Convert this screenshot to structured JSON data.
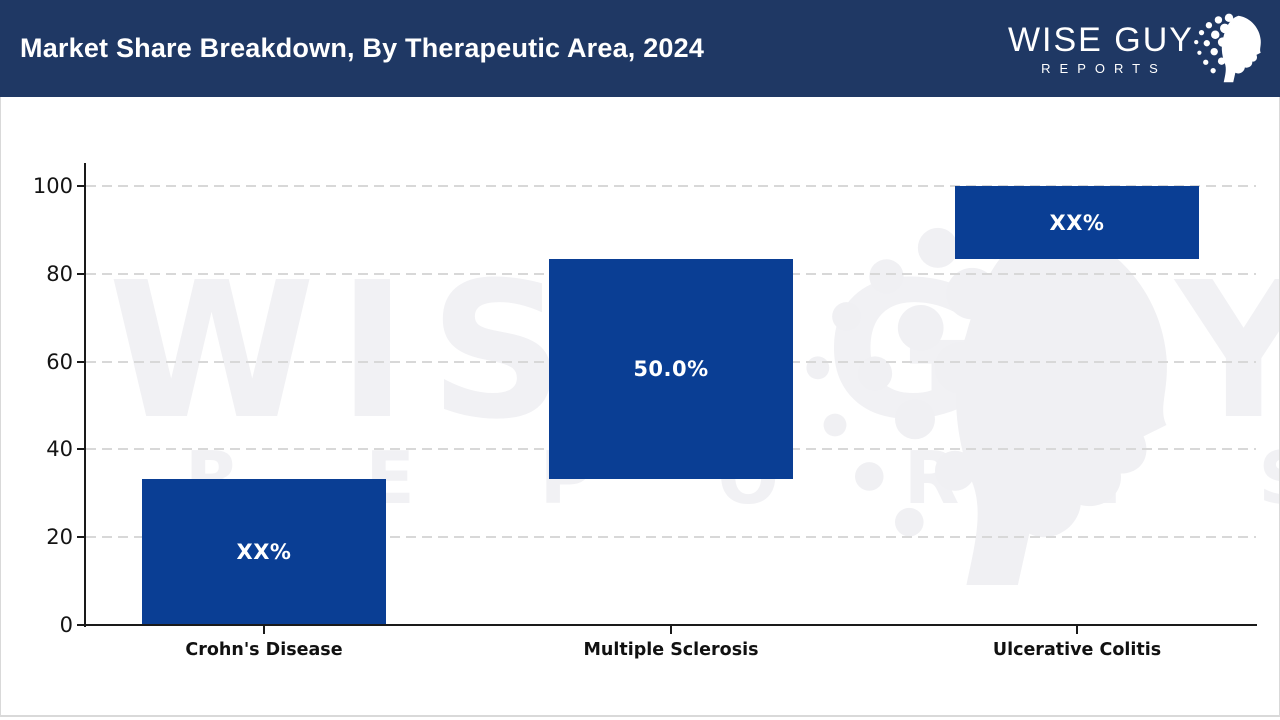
{
  "header": {
    "title": "Market Share Breakdown, By Therapeutic Area, 2024",
    "logo": {
      "line1": "WISE GUY",
      "line2": "REPORTS"
    }
  },
  "watermark": {
    "line1": "WISE GUY",
    "line2": "R E P O R T S"
  },
  "chart_data": {
    "type": "bar",
    "variant": "waterfall",
    "title": "Market Share Breakdown, By Therapeutic Area, 2024",
    "categories": [
      "Crohn's Disease",
      "Multiple Sclerosis",
      "Ulcerative Colitis"
    ],
    "segments": [
      {
        "category": "Crohn's Disease",
        "start": 0,
        "end": 33.3,
        "label": "XX%"
      },
      {
        "category": "Multiple Sclerosis",
        "start": 33.3,
        "end": 83.3,
        "label": "50.0%"
      },
      {
        "category": "Ulcerative Colitis",
        "start": 83.3,
        "end": 100,
        "label": "XX%"
      }
    ],
    "yticks": [
      0,
      20,
      40,
      60,
      80,
      100
    ],
    "ylim": [
      0,
      105
    ],
    "xlabel": "",
    "ylabel": "",
    "grid": "horizontal-dashed",
    "legend": "none"
  },
  "colors": {
    "header_bg": "#1f3864",
    "bar": "#0a3e94",
    "bar_label": "#ffffff",
    "axis": "#1a1a1a",
    "gridline": "#d8d8d8",
    "tick_label": "#141414",
    "watermark": "#f1f1f4",
    "page_bg": "#ffffff"
  }
}
